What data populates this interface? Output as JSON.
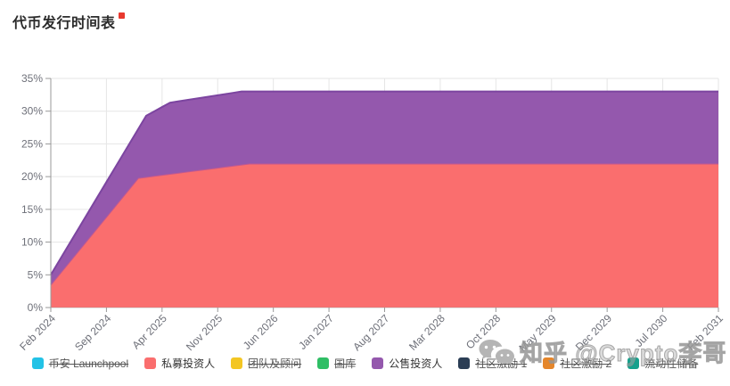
{
  "header": {
    "title": "代币发行时间表",
    "badge_color": "#e8392e"
  },
  "watermark": {
    "text": "知乎 @Crypto李哥"
  },
  "chart_data": {
    "type": "area",
    "stacked": true,
    "title": "代币发行时间表",
    "x_tick_labels": [
      "Feb 2024",
      "Sep 2024",
      "Apr 2025",
      "Nov 2025",
      "Jun 2026",
      "Jan 2027",
      "Aug 2027",
      "Mar 2028",
      "Oct 2028",
      "May 2029",
      "Dec 2029",
      "Jul 2030",
      "Feb 2031"
    ],
    "x_total_months": 84,
    "x_tick_interval_months": 7,
    "x_label_rotation_deg": 45,
    "y_tick_labels": [
      "0%",
      "5%",
      "10%",
      "15%",
      "20%",
      "25%",
      "30%",
      "35%"
    ],
    "ylim": [
      0,
      35
    ],
    "grid": true,
    "legend_position": "bottom",
    "axis_color": "#999999",
    "grid_color": "#e6e6e6",
    "label_color": "#6e7079",
    "series": [
      {
        "name": "币安 Launchpool",
        "color": "#23c2e6",
        "enabled": false
      },
      {
        "name": "私募投资人",
        "color": "#fa6e6e",
        "line_color": "#c2588f",
        "enabled": true,
        "stack_top_pct_by_month": [
          [
            0,
            3.5
          ],
          [
            11,
            19.8
          ],
          [
            25,
            22
          ],
          [
            84,
            22
          ]
        ]
      },
      {
        "name": "团队及顾问",
        "color": "#f3c623",
        "enabled": false
      },
      {
        "name": "国库",
        "color": "#2fbe65",
        "enabled": false
      },
      {
        "name": "公售投资人",
        "color": "#9458ad",
        "line_color": "#7c45a0",
        "enabled": true,
        "stack_top_pct_by_month": [
          [
            0,
            5.0
          ],
          [
            12,
            29.3
          ],
          [
            15,
            31.3
          ],
          [
            24,
            33
          ],
          [
            84,
            33
          ]
        ]
      },
      {
        "name": "社区激励 1",
        "color": "#2b3e55",
        "enabled": false
      },
      {
        "name": "社区激励 2",
        "color": "#e5862b",
        "enabled": false
      },
      {
        "name": "流动性储备",
        "color": "#17a08c",
        "enabled": false
      }
    ]
  }
}
